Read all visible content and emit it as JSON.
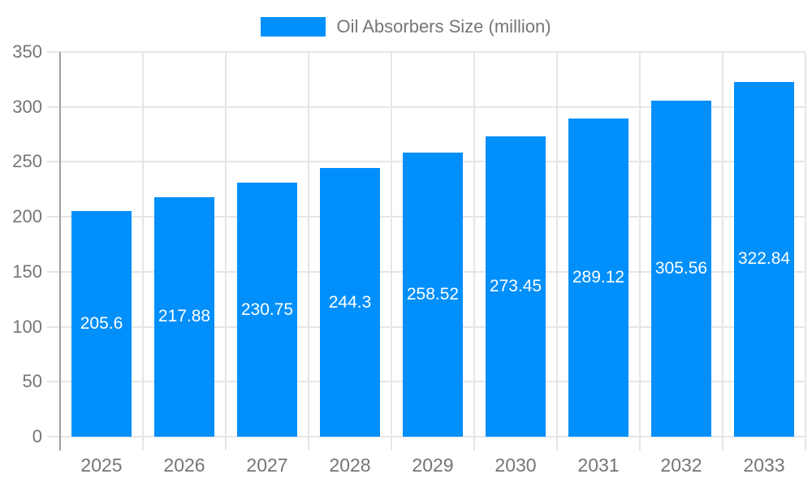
{
  "legend": {
    "label": "Oil Absorbers Size (million)"
  },
  "colors": {
    "bar": "#008ffb",
    "bar_label": "#ffffff",
    "axis_text": "#757575",
    "gridline": "#e6e6e6",
    "axis_line": "#9e9e9e",
    "background": "#ffffff"
  },
  "chart_data": {
    "type": "bar",
    "title": "Oil Absorbers Size (million)",
    "categories": [
      "2025",
      "2026",
      "2027",
      "2028",
      "2029",
      "2030",
      "2031",
      "2032",
      "2033"
    ],
    "values": [
      205.6,
      217.88,
      230.75,
      244.3,
      258.52,
      273.45,
      289.12,
      305.56,
      322.84
    ],
    "value_labels": [
      "205.6",
      "217.88",
      "230.75",
      "244.3",
      "258.52",
      "273.45",
      "289.12",
      "305.56",
      "322.84"
    ],
    "xlabel": "",
    "ylabel": "",
    "ylim": [
      0,
      350
    ],
    "y_ticks": [
      0,
      50,
      100,
      150,
      200,
      250,
      300,
      350
    ],
    "grid": "on",
    "legend_position": "top",
    "value_label_position": "center-inside"
  }
}
